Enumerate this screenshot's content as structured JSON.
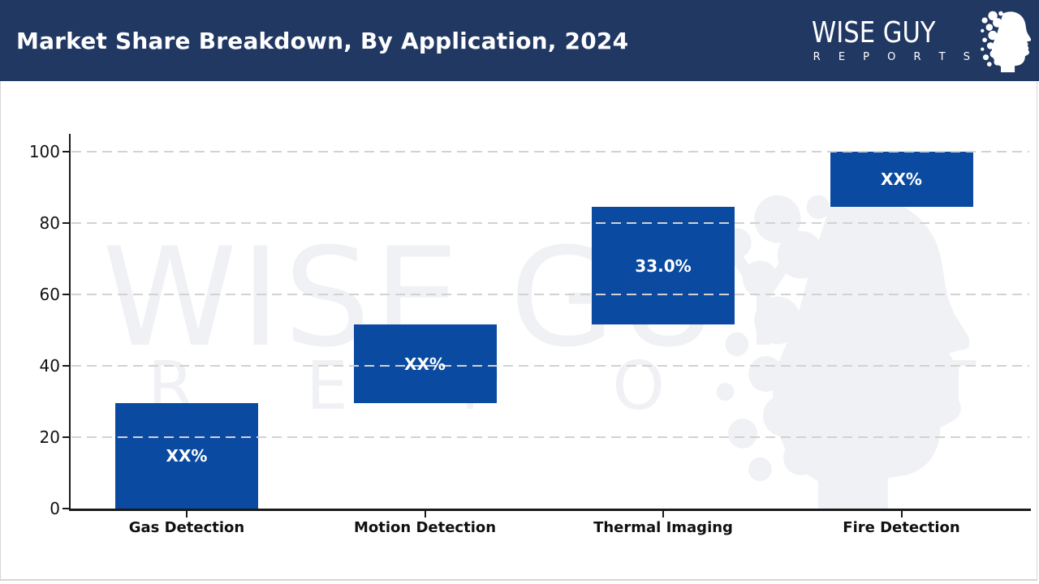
{
  "header": {
    "title": "Market Share Breakdown, By Application, 2024",
    "logo": {
      "line1": "WISE GUY",
      "line2": "R E P O R T S"
    }
  },
  "watermark": {
    "line1": "WISE GUY",
    "line2": "R E P O R T S"
  },
  "chart_data": {
    "type": "bar",
    "subtype": "floating-waterfall",
    "title": "Market Share Breakdown, By Application, 2024",
    "xlabel": "",
    "ylabel": "",
    "categories": [
      "Gas Detection",
      "Motion Detection",
      "Thermal Imaging",
      "Fire Detection"
    ],
    "segments": [
      {
        "category": "Gas Detection",
        "start": 0,
        "end": 29.5,
        "label": "XX%"
      },
      {
        "category": "Motion Detection",
        "start": 29.5,
        "end": 51.5,
        "label": "XX%"
      },
      {
        "category": "Thermal Imaging",
        "start": 51.5,
        "end": 84.5,
        "label": "33.0%"
      },
      {
        "category": "Fire Detection",
        "start": 84.5,
        "end": 100,
        "label": "XX%"
      }
    ],
    "yticks": [
      0,
      20,
      40,
      60,
      80,
      100
    ],
    "ylim": [
      0,
      100
    ],
    "grid": "horizontal dashed gridlines drawn over bars",
    "legend": "none"
  },
  "colors": {
    "header_bg": "#213863",
    "bar": "#0a4aa0",
    "bar_label": "#ffffff",
    "grid": "#d2d2d2",
    "axis": "#1a1a1a",
    "watermark": "#f0f1f4",
    "frame_border": "#d5d5d5"
  }
}
